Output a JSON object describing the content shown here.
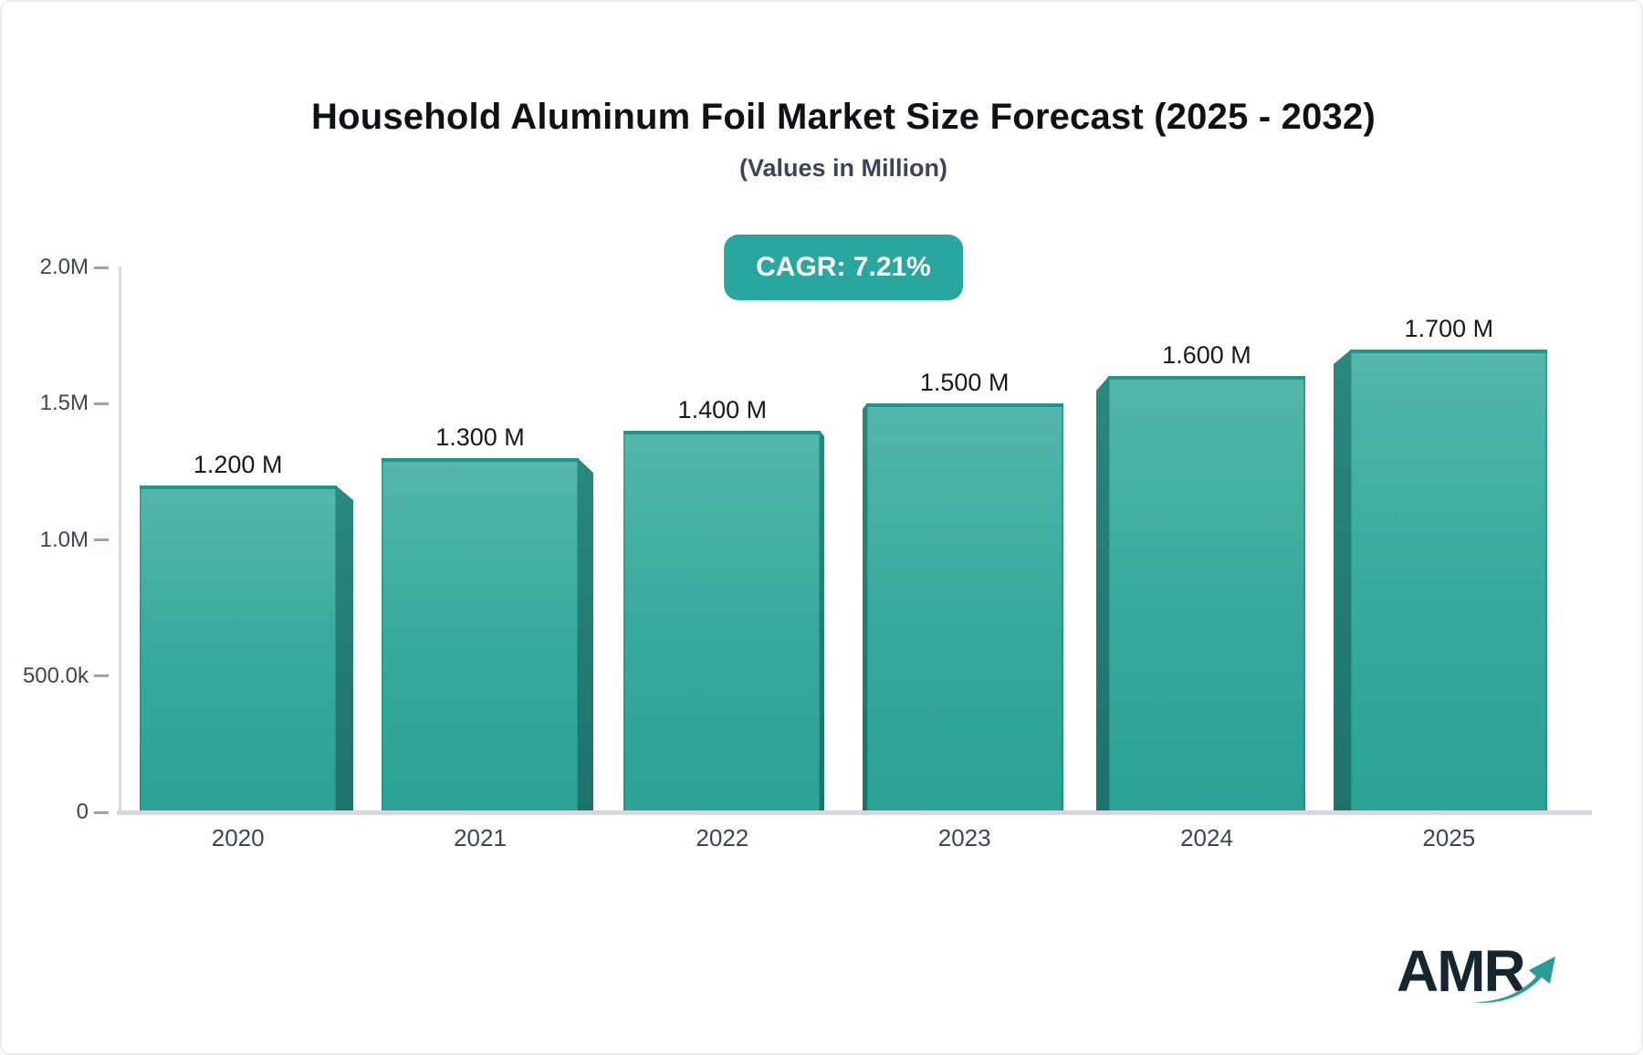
{
  "header": {
    "title": "Household Aluminum Foil Market Size Forecast (2025 - 2032)",
    "subtitle": "(Values in Million)",
    "cagr_badge": "CAGR: 7.21%"
  },
  "chart_data": {
    "type": "bar",
    "categories": [
      "2020",
      "2021",
      "2022",
      "2023",
      "2024",
      "2025"
    ],
    "values": [
      1200000,
      1300000,
      1400000,
      1500000,
      1600000,
      1700000
    ],
    "value_labels": [
      "1.200 M",
      "1.300 M",
      "1.400 M",
      "1.500 M",
      "1.600 M",
      "1.700 M"
    ],
    "title": "Household Aluminum Foil Market Size Forecast (2025 - 2032)",
    "subtitle": "(Values in Million)",
    "annotation": "CAGR: 7.21%",
    "xlabel": "",
    "ylabel": "",
    "y_ticks": [
      "2.0M",
      "1.5M",
      "1.0M",
      "500.0k",
      "0"
    ],
    "ylim": [
      0,
      2000000
    ],
    "grid": false,
    "legend": "none",
    "style_3d": true,
    "bar_face_top_color": "#54b7ab",
    "bar_face_bottom_color": "#2aa294",
    "bar_side_color": "#21796f",
    "badge_color": "#29a69d",
    "axis_color": "#d6d9de"
  },
  "branding": {
    "logo_text": "AMR",
    "logo_color": "#16262e",
    "arrow_color": "#2b9c93"
  }
}
